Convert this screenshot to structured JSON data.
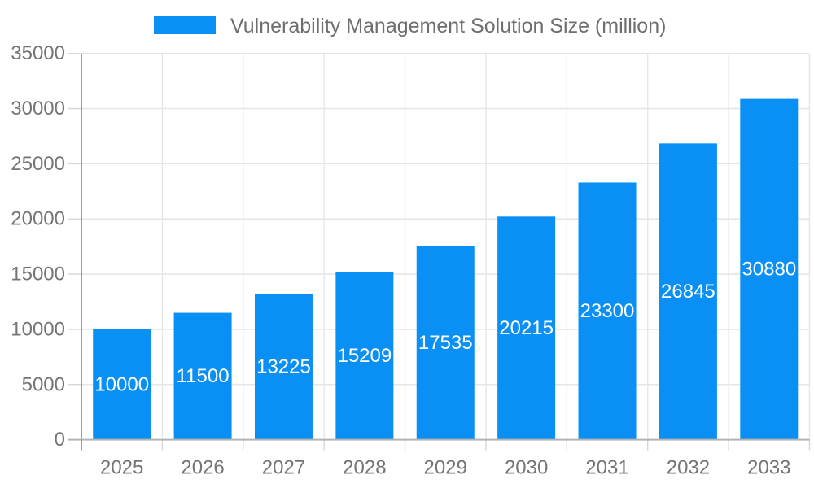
{
  "chart_data": {
    "type": "bar",
    "title": "Vulnerability Management Solution Size (million)",
    "legend": [
      {
        "label": "Vulnerability Management Solution Size (million)",
        "swatch_color": "#0a90f5"
      }
    ],
    "legend_position": "top",
    "categories": [
      "2025",
      "2026",
      "2027",
      "2028",
      "2029",
      "2030",
      "2031",
      "2032",
      "2033"
    ],
    "series": [
      {
        "name": "Vulnerability Management Solution Size (million)",
        "values": [
          10000,
          11500,
          13225,
          15209,
          17535,
          20215,
          23300,
          26845,
          30880
        ]
      }
    ],
    "data_labels": [
      "10000",
      "11500",
      "13225",
      "15209",
      "17535",
      "20215",
      "23300",
      "26845",
      "30880"
    ],
    "xlabel": "",
    "ylabel": "",
    "ylim": [
      0,
      35000
    ],
    "y_ticks": [
      0,
      5000,
      10000,
      15000,
      20000,
      25000,
      30000,
      35000
    ],
    "y_tick_labels": [
      "0",
      "5000",
      "10000",
      "15000",
      "20000",
      "25000",
      "30000",
      "35000"
    ],
    "grid": true,
    "colors": {
      "bar": "#0a90f5",
      "data_label": "#ffffff",
      "axis_label": "#757575",
      "title_text": "#6e6e6e",
      "gridline": "#e6e6e6",
      "y_axis_line": "#9e9e9e",
      "x_axis_line": "#b3b3b3",
      "tick": "#d6d6d6",
      "background": "#ffffff"
    }
  }
}
